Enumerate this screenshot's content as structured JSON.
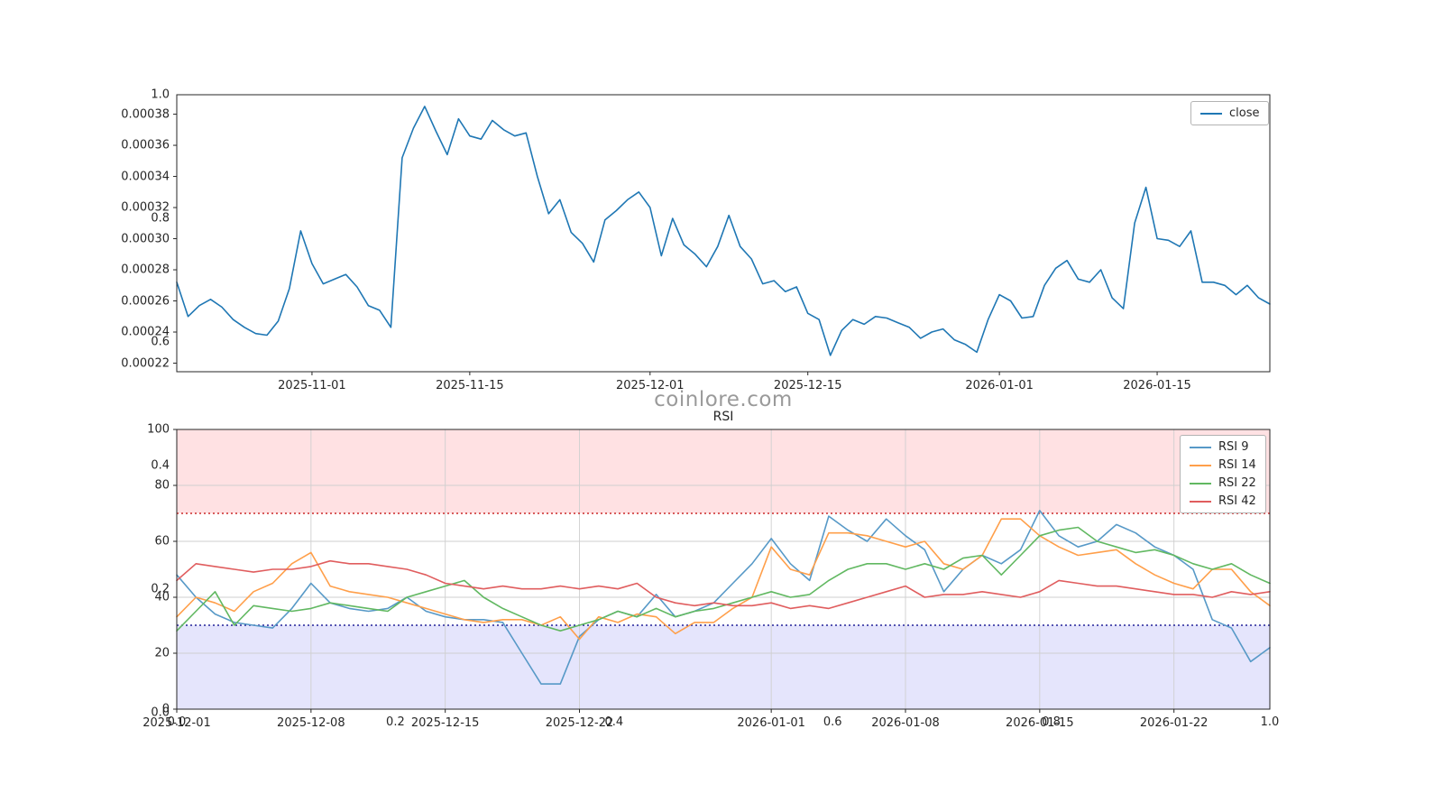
{
  "watermark": "coinlore.com",
  "overlay_axis": {
    "x_ticks": [
      "0.0",
      "0.2",
      "0.4",
      "0.6",
      "0.8",
      "1.0"
    ],
    "y_ticks": [
      "1.0",
      "0.8",
      "0.6",
      "0.4",
      "0.2",
      "0.0"
    ]
  },
  "chart_data": [
    {
      "id": "close",
      "type": "line",
      "title": "",
      "legend_position": "top-right",
      "grid": false,
      "x_start": "2025-10-20",
      "x_end": "2026-01-25",
      "x_ticks": [
        "2025-11-01",
        "2025-11-15",
        "2025-12-01",
        "2025-12-15",
        "2026-01-01",
        "2026-01-15"
      ],
      "ylim": [
        0.0002145,
        0.0003925
      ],
      "y_ticks": [
        {
          "value": 0.00022,
          "label": "0.00022"
        },
        {
          "value": 0.00024,
          "label": "0.00024"
        },
        {
          "value": 0.00026,
          "label": "0.00026"
        },
        {
          "value": 0.00028,
          "label": "0.00028"
        },
        {
          "value": 0.0003,
          "label": "0.00030"
        },
        {
          "value": 0.00032,
          "label": "0.00032"
        },
        {
          "value": 0.00034,
          "label": "0.00034"
        },
        {
          "value": 0.00036,
          "label": "0.00036"
        },
        {
          "value": 0.00038,
          "label": "0.00038"
        }
      ],
      "series": [
        {
          "name": "close",
          "color": "#1f77b4",
          "values": [
            0.000272,
            0.00025,
            0.000257,
            0.000261,
            0.000256,
            0.000248,
            0.000243,
            0.000239,
            0.000238,
            0.000247,
            0.000268,
            0.000305,
            0.000284,
            0.000271,
            0.000274,
            0.000277,
            0.000269,
            0.000257,
            0.000254,
            0.000243,
            0.000352,
            0.000371,
            0.000385,
            0.000369,
            0.000354,
            0.000377,
            0.000366,
            0.000364,
            0.000376,
            0.00037,
            0.000366,
            0.000368,
            0.00034,
            0.000316,
            0.000325,
            0.000304,
            0.000297,
            0.000285,
            0.000312,
            0.000318,
            0.000325,
            0.00033,
            0.00032,
            0.000289,
            0.000313,
            0.000296,
            0.00029,
            0.000282,
            0.000295,
            0.000315,
            0.000295,
            0.000287,
            0.000271,
            0.000273,
            0.000266,
            0.000269,
            0.000252,
            0.000248,
            0.000225,
            0.000241,
            0.000248,
            0.000245,
            0.00025,
            0.000249,
            0.000246,
            0.000243,
            0.000236,
            0.00024,
            0.000242,
            0.000235,
            0.000232,
            0.000227,
            0.000248,
            0.000264,
            0.00026,
            0.000249,
            0.00025,
            0.00027,
            0.000281,
            0.000286,
            0.000274,
            0.000272,
            0.00028,
            0.000262,
            0.000255,
            0.00031,
            0.000333,
            0.0003,
            0.000299,
            0.000295,
            0.000305,
            0.000272,
            0.000272,
            0.00027,
            0.000264,
            0.00027,
            0.000262,
            0.000258
          ]
        }
      ]
    },
    {
      "id": "rsi",
      "type": "line",
      "title": "RSI",
      "legend_position": "top-right",
      "grid": true,
      "x_start": "2025-12-01",
      "x_end": "2026-01-27",
      "x_ticks": [
        "2025-12-01",
        "2025-12-08",
        "2025-12-15",
        "2025-12-22",
        "2026-01-01",
        "2026-01-08",
        "2026-01-15",
        "2026-01-22"
      ],
      "ylim": [
        0,
        100
      ],
      "y_ticks": [
        {
          "value": 0,
          "label": "0"
        },
        {
          "value": 20,
          "label": "20"
        },
        {
          "value": 40,
          "label": "40"
        },
        {
          "value": 60,
          "label": "60"
        },
        {
          "value": 80,
          "label": "80"
        },
        {
          "value": 100,
          "label": "100"
        }
      ],
      "bands": [
        {
          "name": "overbought-band",
          "from": 70,
          "to": 100,
          "color": "rgba(255,70,80,0.16)"
        },
        {
          "name": "oversold-band",
          "from": 0,
          "to": 30,
          "color": "rgba(80,80,235,0.15)"
        }
      ],
      "hlines": [
        {
          "name": "overbought-threshold-line",
          "y": 70,
          "color": "#cc2a2a"
        },
        {
          "name": "oversold-threshold-line",
          "y": 30,
          "color": "#222299"
        }
      ],
      "series": [
        {
          "name": "RSI 9",
          "color": "#5799c7",
          "values": [
            48,
            40,
            34,
            31,
            30,
            29,
            36,
            45,
            38,
            36,
            35,
            36,
            40,
            35,
            33,
            32,
            32,
            31,
            20,
            9,
            9,
            26,
            32,
            35,
            33,
            41,
            33,
            35,
            38,
            45,
            52,
            61,
            52,
            46,
            69,
            64,
            60,
            68,
            62,
            57,
            42,
            50,
            55,
            52,
            57,
            71,
            62,
            58,
            60,
            66,
            63,
            58,
            55,
            50,
            32,
            29,
            17,
            22
          ]
        },
        {
          "name": "RSI 14",
          "color": "#ff9f4a",
          "values": [
            33,
            40,
            38,
            35,
            42,
            45,
            52,
            56,
            44,
            42,
            41,
            40,
            38,
            36,
            34,
            32,
            31,
            32,
            32,
            30,
            33,
            25,
            33,
            31,
            34,
            33,
            27,
            31,
            31,
            36,
            40,
            58,
            50,
            48,
            63,
            63,
            62,
            60,
            58,
            60,
            52,
            50,
            55,
            68,
            68,
            62,
            58,
            55,
            56,
            57,
            52,
            48,
            45,
            43,
            50,
            50,
            42,
            37
          ]
        },
        {
          "name": "RSI 22",
          "color": "#61b861",
          "values": [
            28,
            35,
            42,
            30,
            37,
            36,
            35,
            36,
            38,
            37,
            36,
            35,
            40,
            42,
            44,
            46,
            40,
            36,
            33,
            30,
            28,
            30,
            32,
            35,
            33,
            36,
            33,
            35,
            36,
            38,
            40,
            42,
            40,
            41,
            46,
            50,
            52,
            52,
            50,
            52,
            50,
            54,
            55,
            48,
            55,
            62,
            64,
            65,
            60,
            58,
            56,
            57,
            55,
            52,
            50,
            52,
            48,
            45
          ]
        },
        {
          "name": "RSI 42",
          "color": "#e05d5e",
          "values": [
            46,
            52,
            51,
            50,
            49,
            50,
            50,
            51,
            53,
            52,
            52,
            51,
            50,
            48,
            45,
            44,
            43,
            44,
            43,
            43,
            44,
            43,
            44,
            43,
            45,
            40,
            38,
            37,
            38,
            37,
            37,
            38,
            36,
            37,
            36,
            38,
            40,
            42,
            44,
            40,
            41,
            41,
            42,
            41,
            40,
            42,
            46,
            45,
            44,
            44,
            43,
            42,
            41,
            41,
            40,
            42,
            41,
            42
          ]
        }
      ]
    }
  ]
}
